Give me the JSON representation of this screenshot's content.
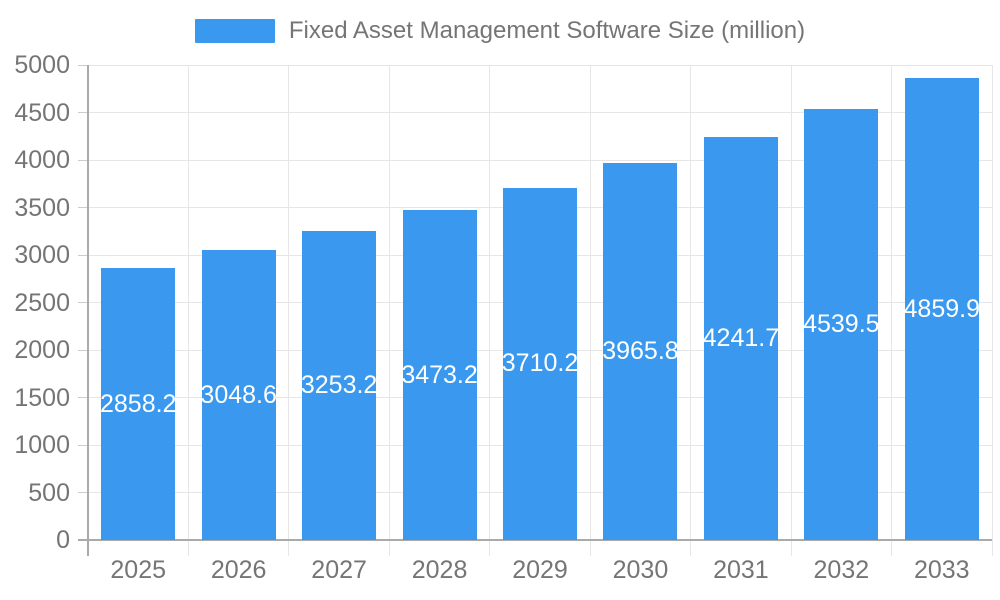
{
  "chart_data": {
    "type": "bar",
    "title": "Fixed Asset Management Software Size (million)",
    "legend": {
      "label": "Fixed Asset Management Software Size (million)",
      "position": "top-center"
    },
    "categories": [
      "2025",
      "2026",
      "2027",
      "2028",
      "2029",
      "2030",
      "2031",
      "2032",
      "2033"
    ],
    "values": [
      2858.2,
      3048.6,
      3253.2,
      3473.2,
      3710.2,
      3965.8,
      4241.7,
      4539.5,
      4859.9
    ],
    "value_label_decimals": 1,
    "xlabel": "",
    "ylabel": "",
    "ylim": [
      0,
      5000
    ],
    "ytick_step": 500,
    "grid": true,
    "colors": {
      "bar": "#3A99EE",
      "value_label": "#ffffff",
      "axis_text": "#757575",
      "legend_text": "#757575",
      "gridline": "#e6e6e6",
      "axis_line": "#aaaaaa",
      "background": "#ffffff"
    }
  }
}
